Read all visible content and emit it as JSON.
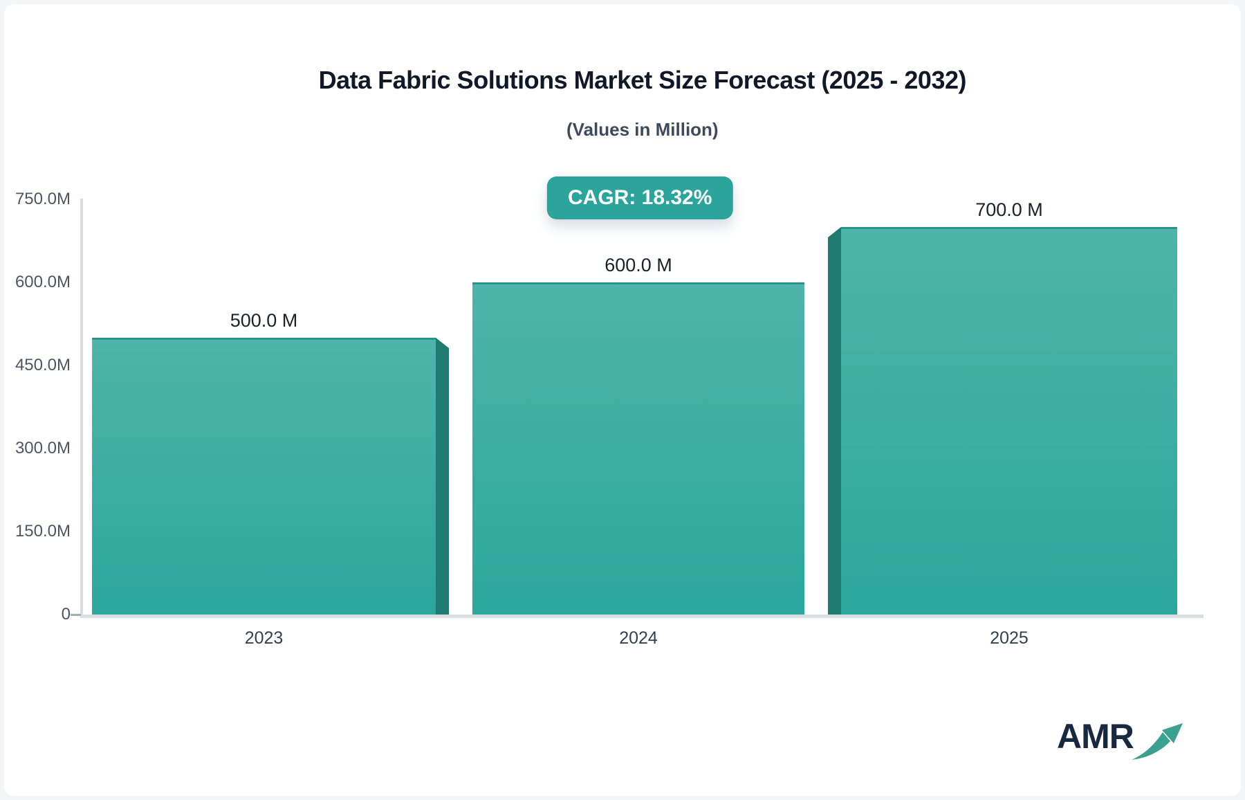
{
  "page": {
    "background": "#f3f5f7",
    "card_background": "#ffffff"
  },
  "header": {
    "title": "Data Fabric Solutions Market Size Forecast (2025 - 2032)",
    "subtitle": "(Values in Million)",
    "cagr_label": "CAGR: 18.32%",
    "badge_color": "#2ba49b"
  },
  "chart_data": {
    "type": "bar",
    "title": "Data Fabric Solutions Market Size Forecast (2025 - 2032)",
    "subtitle": "(Values in Million)",
    "unit": "Million",
    "categories": [
      "2023",
      "2024",
      "2025"
    ],
    "values": [
      500,
      600,
      700
    ],
    "value_labels": [
      "500.0 M",
      "600.0 M",
      "700.0 M"
    ],
    "annotation": "CAGR: 18.32%",
    "ylim": [
      0,
      750
    ],
    "y_tick_values": [
      750,
      600,
      450,
      300,
      150,
      0
    ],
    "y_tick_labels": [
      "750.0M",
      "600.0M",
      "450.0M",
      "300.0M",
      "150.0M",
      "0"
    ],
    "grid": false,
    "legend": "none",
    "bar_face_top_color": "#4fb4ab",
    "bar_face_bottom_color": "#2ba79b",
    "bar_top_edge_color": "#2a958c",
    "bar_side_color": "#1f7a70",
    "axis_color": "#d9dce1"
  },
  "logo": {
    "text": "AMR",
    "text_color": "#172940",
    "arrow_color": "#3aa08f"
  }
}
